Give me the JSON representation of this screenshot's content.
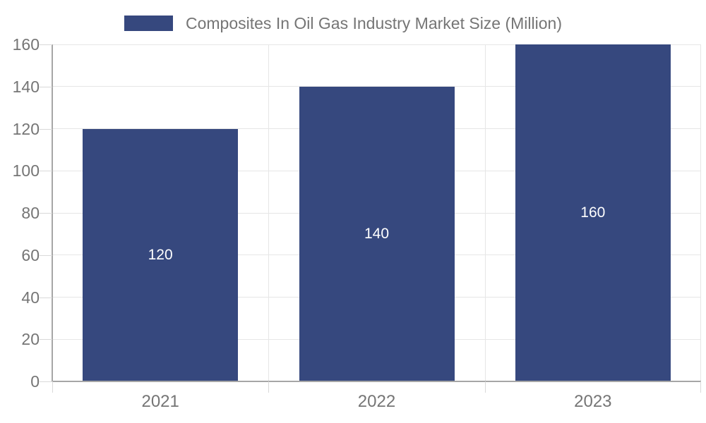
{
  "chart_data": {
    "type": "bar",
    "title": "Composites In Oil Gas Industry Market Size (Million)",
    "series": [
      {
        "name": "Composites In Oil Gas Industry Market Size (Million)",
        "values": [
          120,
          140,
          160
        ]
      }
    ],
    "categories": [
      "2021",
      "2022",
      "2023"
    ],
    "data_labels": [
      "120",
      "140",
      "160"
    ],
    "xlabel": "",
    "ylabel": "",
    "ylim": [
      0,
      160
    ],
    "yticks": [
      0,
      20,
      40,
      60,
      80,
      100,
      120,
      140,
      160
    ],
    "grid": true,
    "legend_position": "top",
    "bar_label_position": "center"
  },
  "colors": {
    "bar": "#36487E",
    "bar_label_text": "#ffffff",
    "legend_text": "#757575",
    "tick_text": "#757575",
    "gridline": "#e6e6e6",
    "axis_line": "#a6a6a6",
    "tick_mark": "#d9d9d9",
    "background": "#ffffff"
  }
}
